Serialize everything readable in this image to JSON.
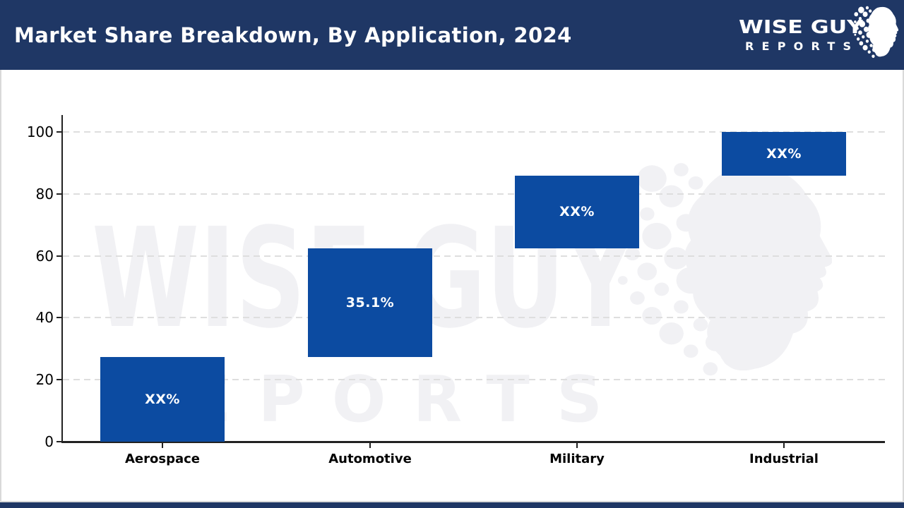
{
  "header": {
    "title": "Market Share Breakdown, By Application, 2024",
    "logo": {
      "line1": "WISE GUY",
      "line2": "REPORTS"
    }
  },
  "watermark": {
    "line1": "WISE GUY",
    "line2": "REPORTS"
  },
  "colors": {
    "header_bg": "#1f3765",
    "footer_bg": "#1f3765",
    "bar": "#0c4ba1",
    "grid": "#dedede",
    "axis": "#222222",
    "watermark": "#f1f1f4",
    "frame": "#d9d9d9"
  },
  "chart_data": {
    "type": "bar",
    "variant": "floating-segment waterfall breakdown (each bar stacks on top of the previous, summing to 100%)",
    "title": "Market Share Breakdown, By Application, 2024",
    "categories": [
      "Aerospace",
      "Automotive",
      "Military",
      "Industrial"
    ],
    "values": [
      27.3,
      35.1,
      23.5,
      14.1
    ],
    "segments": [
      {
        "category": "Aerospace",
        "start": 0,
        "end": 27.3,
        "label": "XX%"
      },
      {
        "category": "Automotive",
        "start": 27.3,
        "end": 62.4,
        "label": "35.1%"
      },
      {
        "category": "Military",
        "start": 62.4,
        "end": 85.9,
        "label": "XX%"
      },
      {
        "category": "Industrial",
        "start": 85.9,
        "end": 100,
        "label": "XX%"
      }
    ],
    "bar_labels": [
      "XX%",
      "35.1%",
      "XX%",
      "XX%"
    ],
    "xlabel": "",
    "ylabel": "",
    "y_ticks": [
      0,
      20,
      40,
      60,
      80,
      100
    ],
    "ylim": [
      0,
      105
    ],
    "grid": "horizontal dashed",
    "legend": "none"
  }
}
